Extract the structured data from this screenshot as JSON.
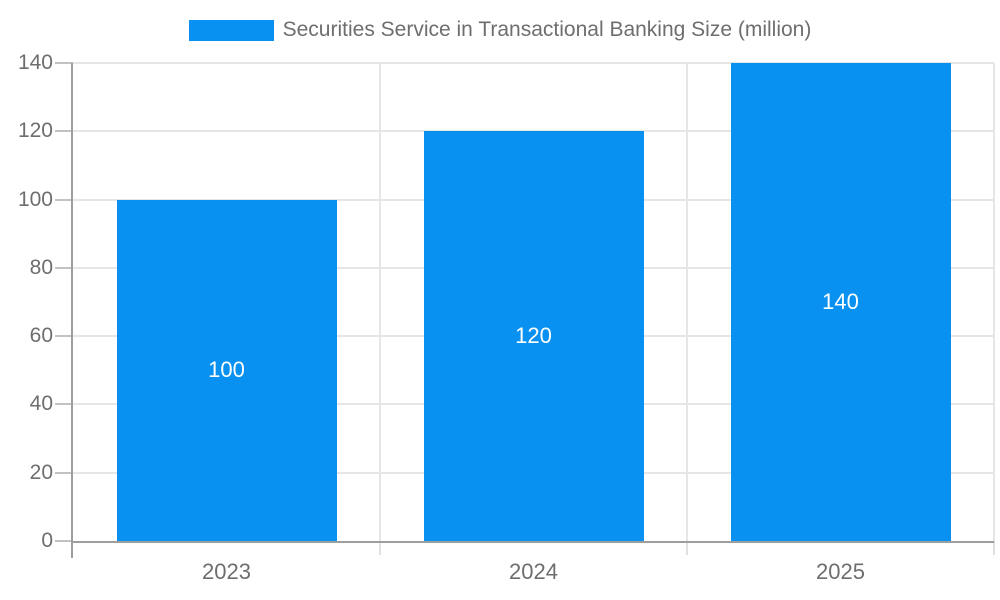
{
  "chart_data": {
    "type": "bar",
    "title": "Securities Service in Transactional Banking Size (million)",
    "categories": [
      "2023",
      "2024",
      "2025"
    ],
    "series": [
      {
        "name": "Securities Service in Transactional Banking Size (million)",
        "values": [
          100,
          120,
          140
        ]
      }
    ],
    "bar_labels": [
      "100",
      "120",
      "140"
    ],
    "xlabel": "",
    "ylabel": "",
    "ylim": [
      0,
      140
    ],
    "y_ticks": [
      0,
      20,
      40,
      60,
      80,
      100,
      120,
      140
    ],
    "grid": true,
    "legend_position": "top-center",
    "colors": {
      "bar": "#0991f2",
      "grid": "#e6e6e6",
      "grid_stub": "#e0e0e0",
      "axis": "#9e9e9e",
      "tick_mark": "#c2c2c2",
      "tick_text": "#6e6e6e",
      "legend_text": "#6e6e6e",
      "bar_label_text": "#ffffff",
      "background": "#ffffff"
    }
  }
}
